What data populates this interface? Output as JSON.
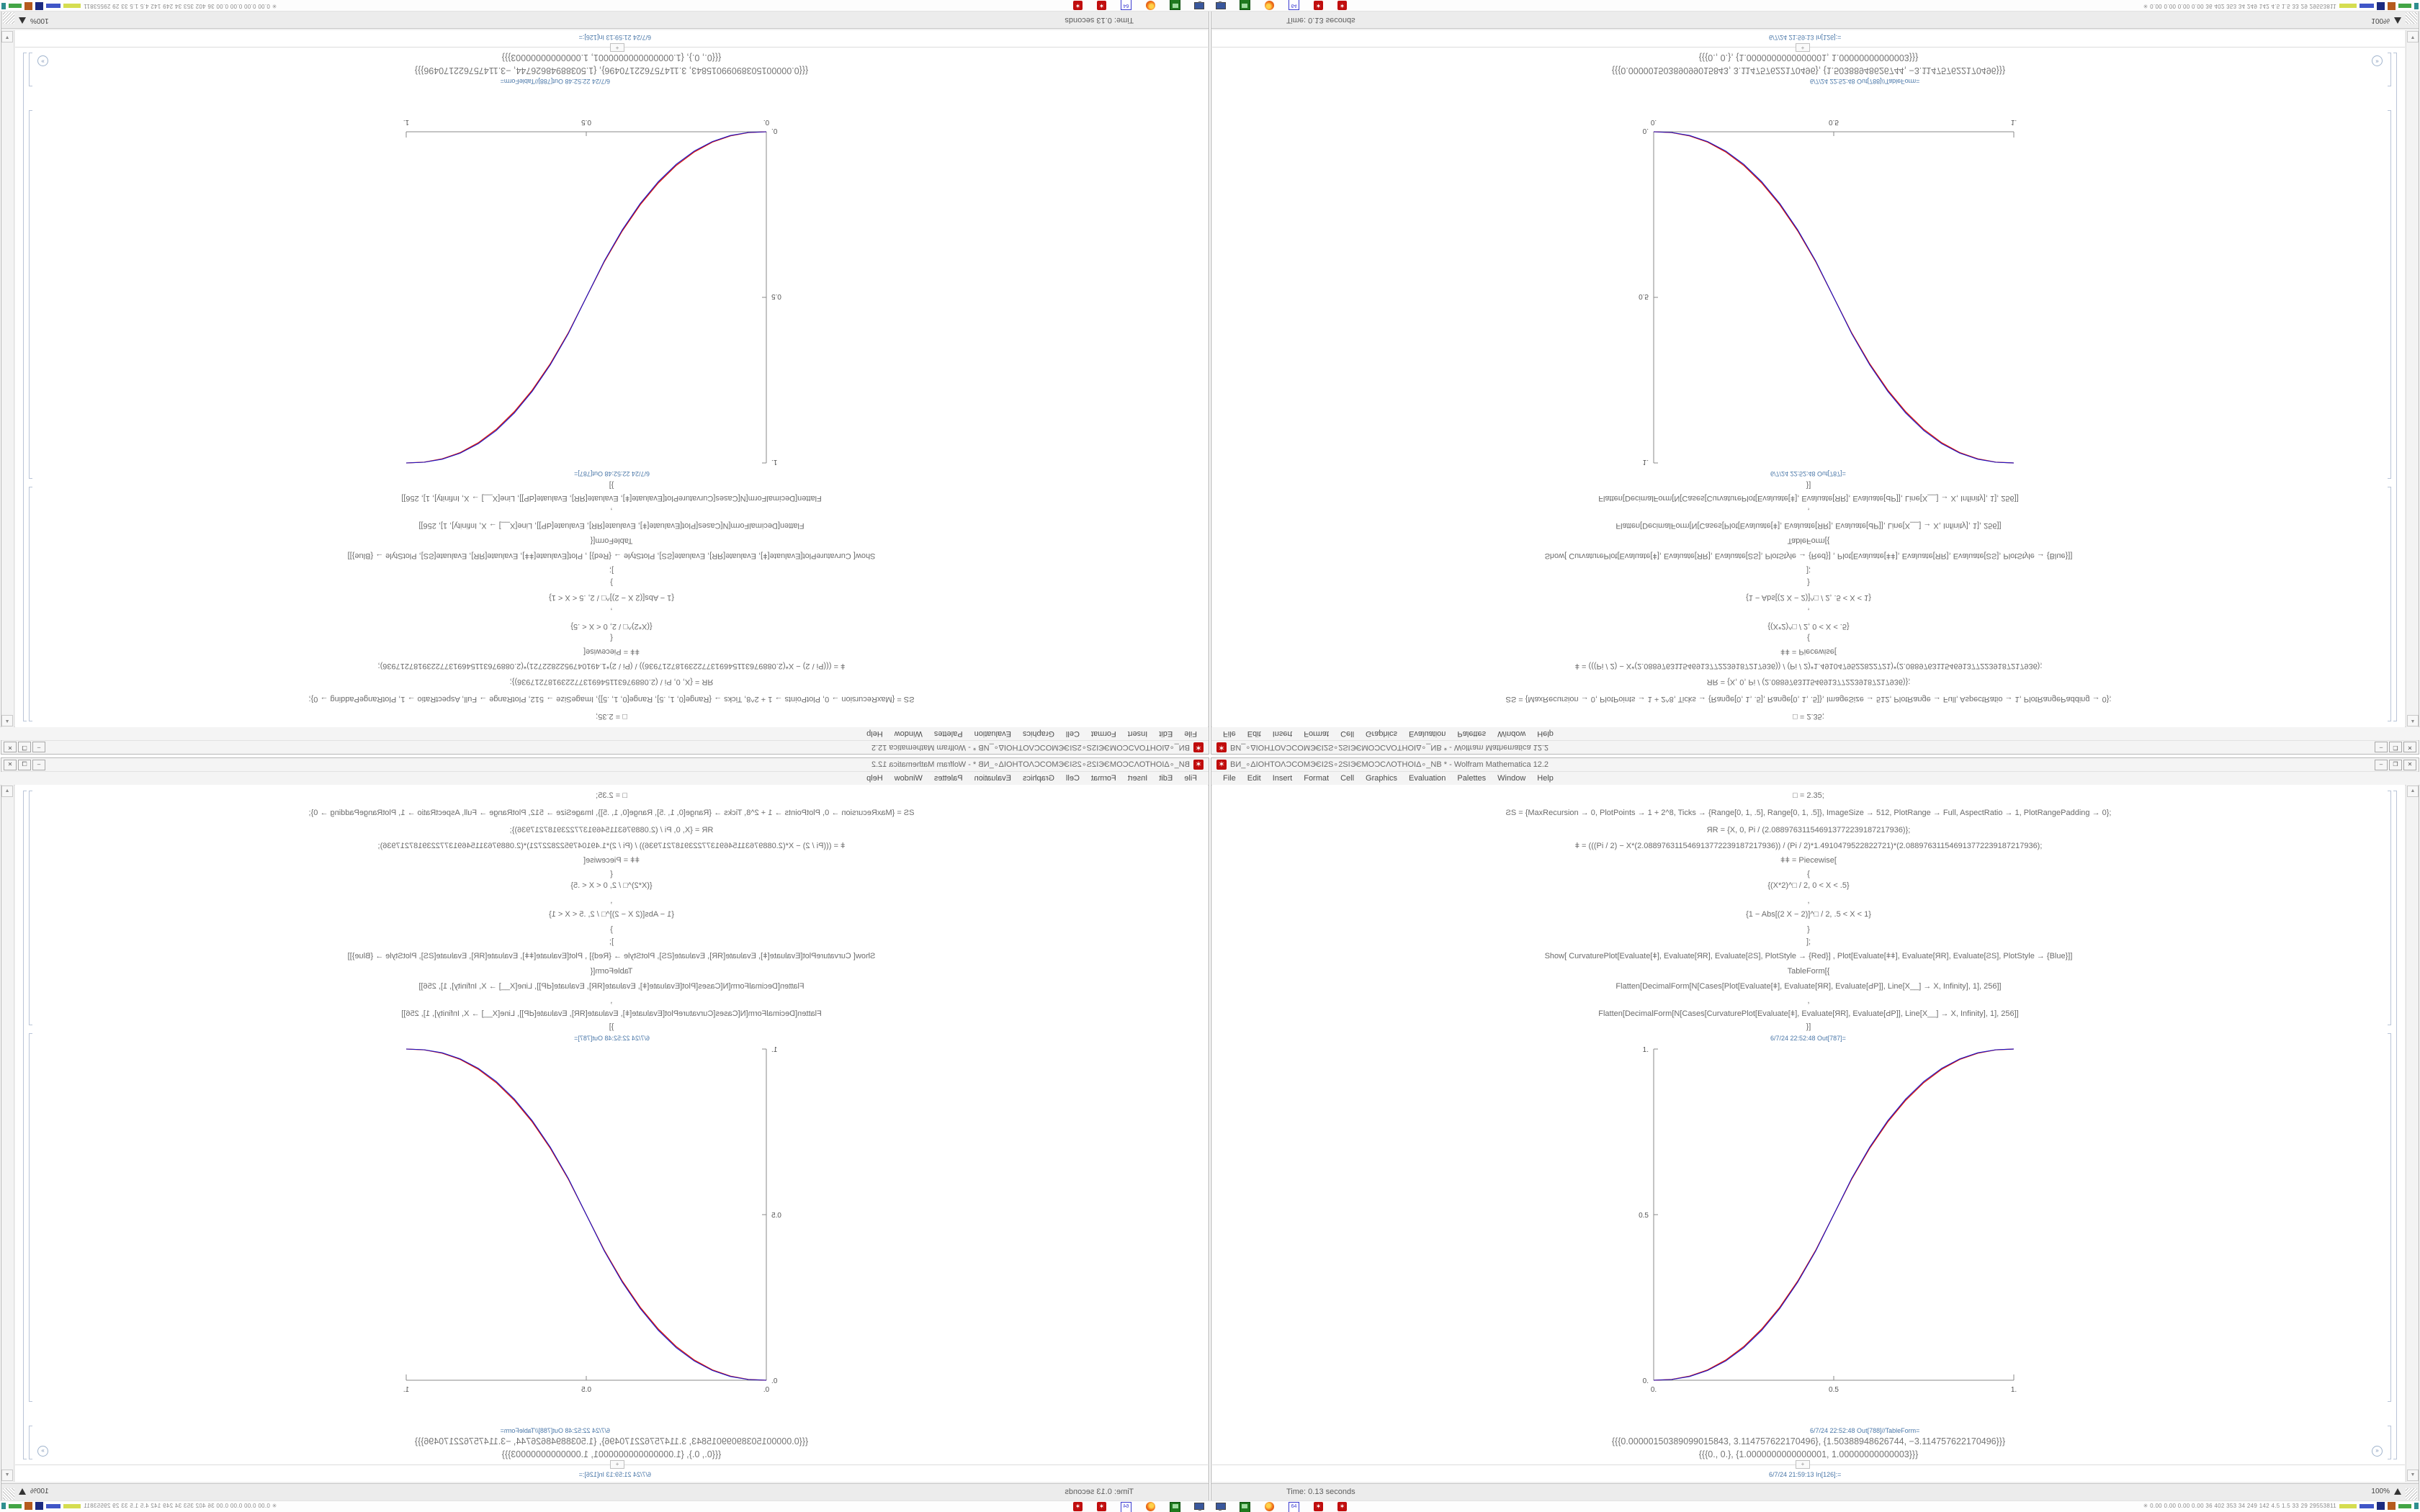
{
  "window": {
    "title": "ВИ_∘ΔΙΟΗΤΟΛƆCOMЭЄΙ2S∘2SΙЭЄMOƆCΛΟΤΗΟΙΔ∘_NB * - Wolfram Mathematica 12.2",
    "app_icon": "✶",
    "buttons": {
      "minimize": "–",
      "maximize": "❐",
      "close": "✕"
    }
  },
  "menu": {
    "items": [
      "File",
      "Edit",
      "Insert",
      "Format",
      "Cell",
      "Graphics",
      "Evaluation",
      "Palettes",
      "Window",
      "Help"
    ]
  },
  "code": {
    "lines": [
      "□ = 2.35;",
      "ƧS = {MaxRecursion → 0, PlotPoints → 1 + 2^8, Ticks → {Range[0, 1, .5], Range[0, 1, .5]}, ImageSize → 512, PlotRange → Full, AspectRatio → 1, PlotRangePadding → 0};",
      "ЯR = {X, 0, Pi / (2.088976311546913772239187217936)};",
      "ǂ = (((Pi / 2) − X*(2.088976311546913772239187217936)) / (Pi / 2)*1.4910479522822721)*(2.088976311546913772239187217936);",
      "ǂǂ = Piecewise[",
      "{",
      "{(X*2)^□ / 2, 0 < X < .5}",
      ",",
      "{1 − Abs[(2 X − 2)]^□ / 2, .5 < X < 1}",
      "}",
      "];",
      "Show[  CurvaturePlot[Evaluate[ǂ], Evaluate[ЯR], Evaluate[ƧS], PlotStyle → {Red}]  ,  Plot[Evaluate[ǂǂ], Evaluate[ЯR], Evaluate[ƧS], PlotStyle → {Blue}]]",
      "TableForm[{",
      "Flatten[DecimalForm[N[Cases[Plot[Evaluate[ǂ], Evaluate[ЯR], Evaluate[ԀP]], Line[X__] → X, Infinity], 1], 256]]",
      ",",
      "Flatten[DecimalForm[N[Cases[CurvaturePlot[Evaluate[ǂ], Evaluate[ЯR], Evaluate[ԀP]], Line[X__] → X, Infinity], 1], 256]]",
      "}]"
    ]
  },
  "cells": {
    "out_plot_label": "6/7/24 22:52:48 Out[787]=",
    "out_table_label": "6/7/24 22:52:48 Out[788]//TableForm=",
    "next_in_label": "6/7/24 21:59:13 In[126]:=",
    "insert_plus": "+",
    "more_output_icon": "»"
  },
  "outputs": {
    "row1": "{{{0.00000150389099015843, 3.114757622170496}, {1.50388948626744, −3.114757622170496}}}",
    "row2": "{{{0., 0.}, {1.0000000000000001, 1.00000000000003}}}"
  },
  "status": {
    "time": "Time: 0.13 seconds",
    "zoom": "100%"
  },
  "scrollbar": {
    "up": "▲",
    "down": "▼"
  },
  "taskbar": {
    "tray_text": "✳ 0.00 0.00 0.00 0.00    36    402 353 34 249 142 4.5 1.5 33  29 29553811",
    "quick_launch": [
      "computer-icon",
      "package-icon",
      "firefox-icon",
      "disk64-icon",
      "mathematica-icon",
      "mathematica-icon"
    ],
    "disk_label": "64",
    "wolfram_glyph": "✶"
  },
  "colors": {
    "curve_red": "#dd1507",
    "curve_blue": "#1б1бcc",
    "accent_red_icon": "#c00d0d",
    "cell_label_blue": "#4a77a8"
  },
  "chart_data": {
    "type": "line",
    "title": "",
    "xlabel": "",
    "ylabel": "",
    "xlim": [
      0,
      1
    ],
    "ylim": [
      0,
      1
    ],
    "xticks": [
      "0.",
      "0.5",
      "1."
    ],
    "yticks": [
      "0.",
      "0.5",
      "1."
    ],
    "grid": false,
    "legend": "none",
    "x": [
      0,
      0.05,
      0.1,
      0.15,
      0.2,
      0.25,
      0.3,
      0.35,
      0.4,
      0.45,
      0.5,
      0.55,
      0.6,
      0.65,
      0.7,
      0.75,
      0.8,
      0.85,
      0.9,
      0.95,
      1
    ],
    "series": [
      {
        "name": "CurvaturePlot ǂ (Red)",
        "color": "#dd1507",
        "y": [
          0,
          0.0025,
          0.0123,
          0.0313,
          0.0608,
          0.1016,
          0.1545,
          0.2201,
          0.2993,
          0.3924,
          0.5,
          0.6076,
          0.7007,
          0.7799,
          0.8455,
          0.8984,
          0.9392,
          0.9687,
          0.9877,
          0.9975,
          1
        ]
      },
      {
        "name": "Plot ǂǂ Piecewise (Blue)",
        "color": "#1616cc",
        "y": [
          0,
          0.0022,
          0.0114,
          0.0295,
          0.058,
          0.098,
          0.1506,
          0.2162,
          0.296,
          0.3903,
          0.5,
          0.6097,
          0.704,
          0.7838,
          0.8494,
          0.902,
          0.942,
          0.9705,
          0.9886,
          0.9978,
          1
        ]
      }
    ]
  }
}
